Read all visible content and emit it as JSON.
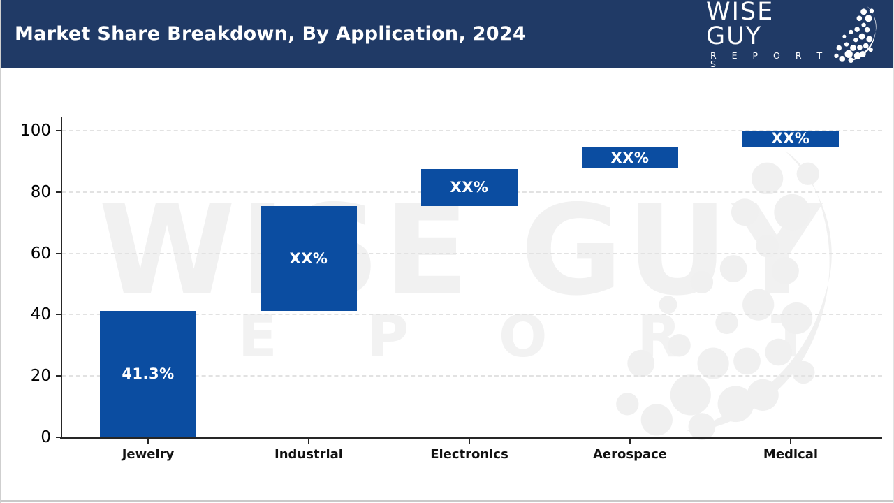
{
  "header": {
    "title": "Market Share Breakdown, By Application, 2024",
    "bg_color": "#203a66",
    "logo": {
      "line1": "WISE GUY",
      "line2": "R E P O R T S"
    }
  },
  "watermark": {
    "line1": "WISE GUY",
    "line2": "R E P O R T S"
  },
  "chart_data": {
    "type": "bar",
    "subtype": "waterfall",
    "title": "Market Share Breakdown, By Application, 2024",
    "categories": [
      "Jewelry",
      "Industrial",
      "Electronics",
      "Aerospace",
      "Medical"
    ],
    "segments": [
      {
        "category": "Jewelry",
        "start": 0,
        "end": 41.3,
        "label": "41.3%"
      },
      {
        "category": "Industrial",
        "start": 41.3,
        "end": 75.5,
        "label": "XX%"
      },
      {
        "category": "Electronics",
        "start": 75.5,
        "end": 87.4,
        "label": "XX%"
      },
      {
        "category": "Aerospace",
        "start": 87.6,
        "end": 94.6,
        "label": "XX%"
      },
      {
        "category": "Medical",
        "start": 94.8,
        "end": 100,
        "label": "XX%"
      }
    ],
    "ylim": [
      0,
      100
    ],
    "yticks": [
      0,
      20,
      40,
      60,
      80,
      100
    ],
    "bar_color": "#0b4da1",
    "grid": "dashed-horizontal",
    "legend": "none",
    "xlabel": "",
    "ylabel": ""
  }
}
